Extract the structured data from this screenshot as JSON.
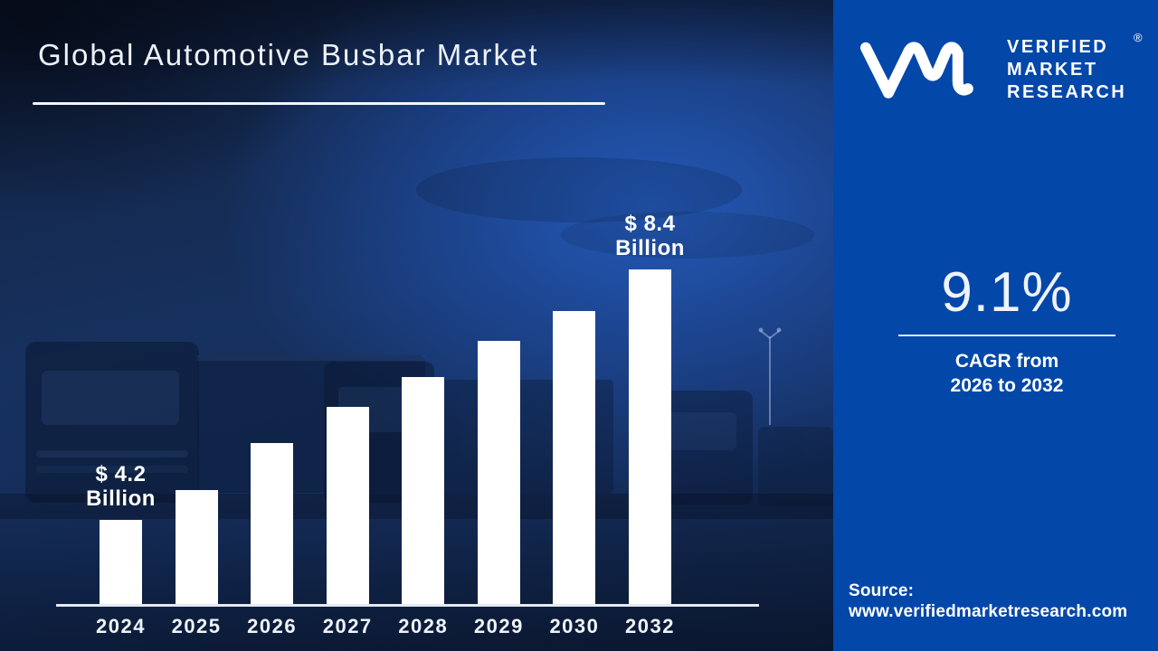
{
  "title": "Global Automotive Busbar Market",
  "brand": {
    "logo_mark": "vmr-monogram",
    "logo_lines": [
      "VERIFIED",
      "MARKET",
      "RESEARCH"
    ],
    "registered_mark": "®"
  },
  "panel": {
    "bg_color": "#0347A9",
    "cagr_value": "9.1%",
    "cagr_label_line1": "CAGR from",
    "cagr_label_line2": "2026 to 2032",
    "source_label": "Source:",
    "source_url": "www.verifiedmarketresearch.com"
  },
  "chart_data": {
    "type": "bar",
    "title": "Global Automotive Busbar Market",
    "unit": "USD Billion",
    "categories": [
      "2024",
      "2025",
      "2026",
      "2027",
      "2028",
      "2029",
      "2030",
      "2032"
    ],
    "values": [
      4.2,
      4.7,
      5.5,
      6.1,
      6.6,
      7.2,
      7.7,
      8.4
    ],
    "labeled_points": [
      {
        "index": 0,
        "lines": [
          "$ 4.2",
          "Billion"
        ]
      },
      {
        "index": 7,
        "lines": [
          "$ 8.4",
          "Billion"
        ]
      }
    ],
    "bar_color": "#ffffff",
    "axis_range_rendered": [
      2.8,
      8.55
    ],
    "xlabel": "",
    "ylabel": "",
    "gridlines": false,
    "legend": false
  }
}
